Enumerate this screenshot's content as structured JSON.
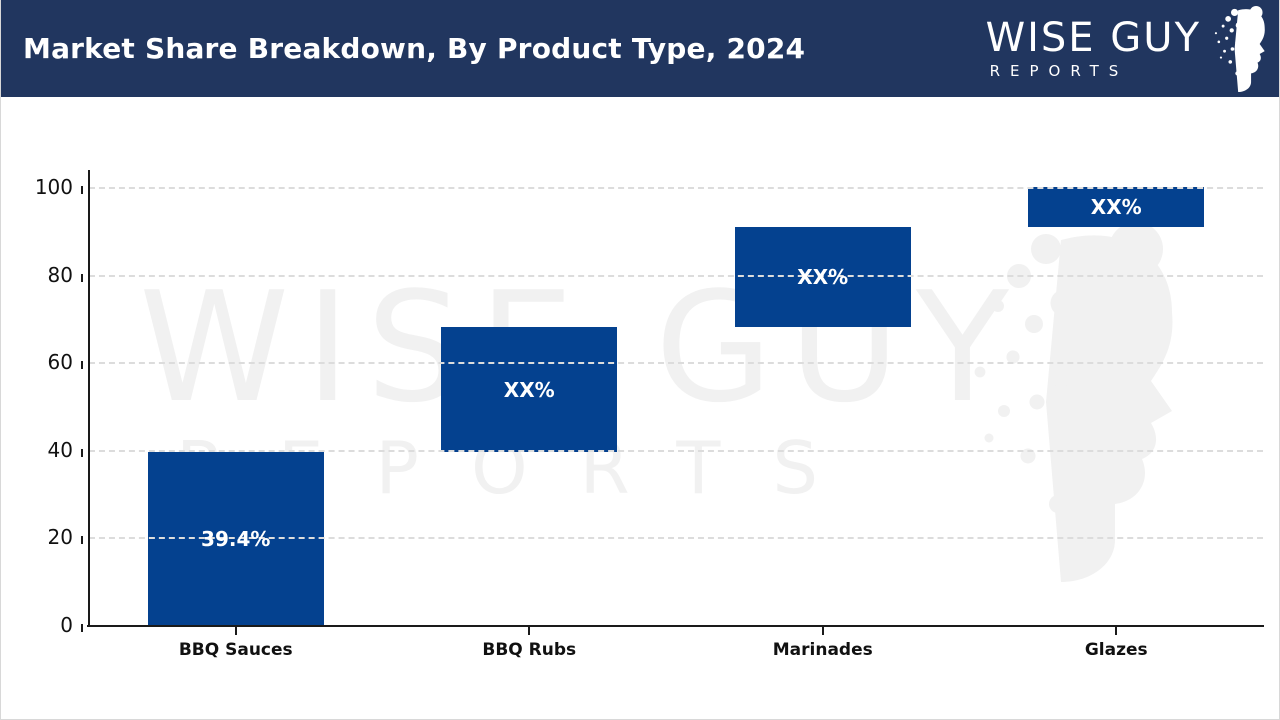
{
  "header": {
    "title": "Market Share Breakdown, By Product Type, 2024",
    "logo": {
      "line1": "WISE GUY",
      "line2": "REPORTS"
    }
  },
  "watermark": {
    "line1": "WISE GUY",
    "line2": "REPORTS"
  },
  "colors": {
    "header_bg": "#21365f",
    "bar": "#04418f",
    "grid": "#dcdcdc",
    "watermark": "#f1f1f1",
    "title_text": "#ffffff",
    "axis_text": "#111111"
  },
  "chart_data": {
    "type": "bar",
    "subtype": "waterfall",
    "title": "Market Share Breakdown, By Product Type, 2024",
    "categories": [
      "BBQ Sauces",
      "BBQ Rubs",
      "Marinades",
      "Glazes"
    ],
    "segments": [
      [
        0,
        39.4
      ],
      [
        39.4,
        68.1
      ],
      [
        68.1,
        90.8
      ],
      [
        90.8,
        100
      ]
    ],
    "values": [
      39.4,
      28.7,
      22.7,
      9.2
    ],
    "bar_labels": [
      "39.4%",
      "XX%",
      "XX%",
      "XX%"
    ],
    "yticks": [
      0,
      20,
      40,
      60,
      80,
      100
    ],
    "ylim": [
      0,
      104
    ],
    "xlabel": "",
    "ylabel": "",
    "grid": "horizontal-dashed",
    "grid_above_bars": true,
    "legend": "none"
  }
}
